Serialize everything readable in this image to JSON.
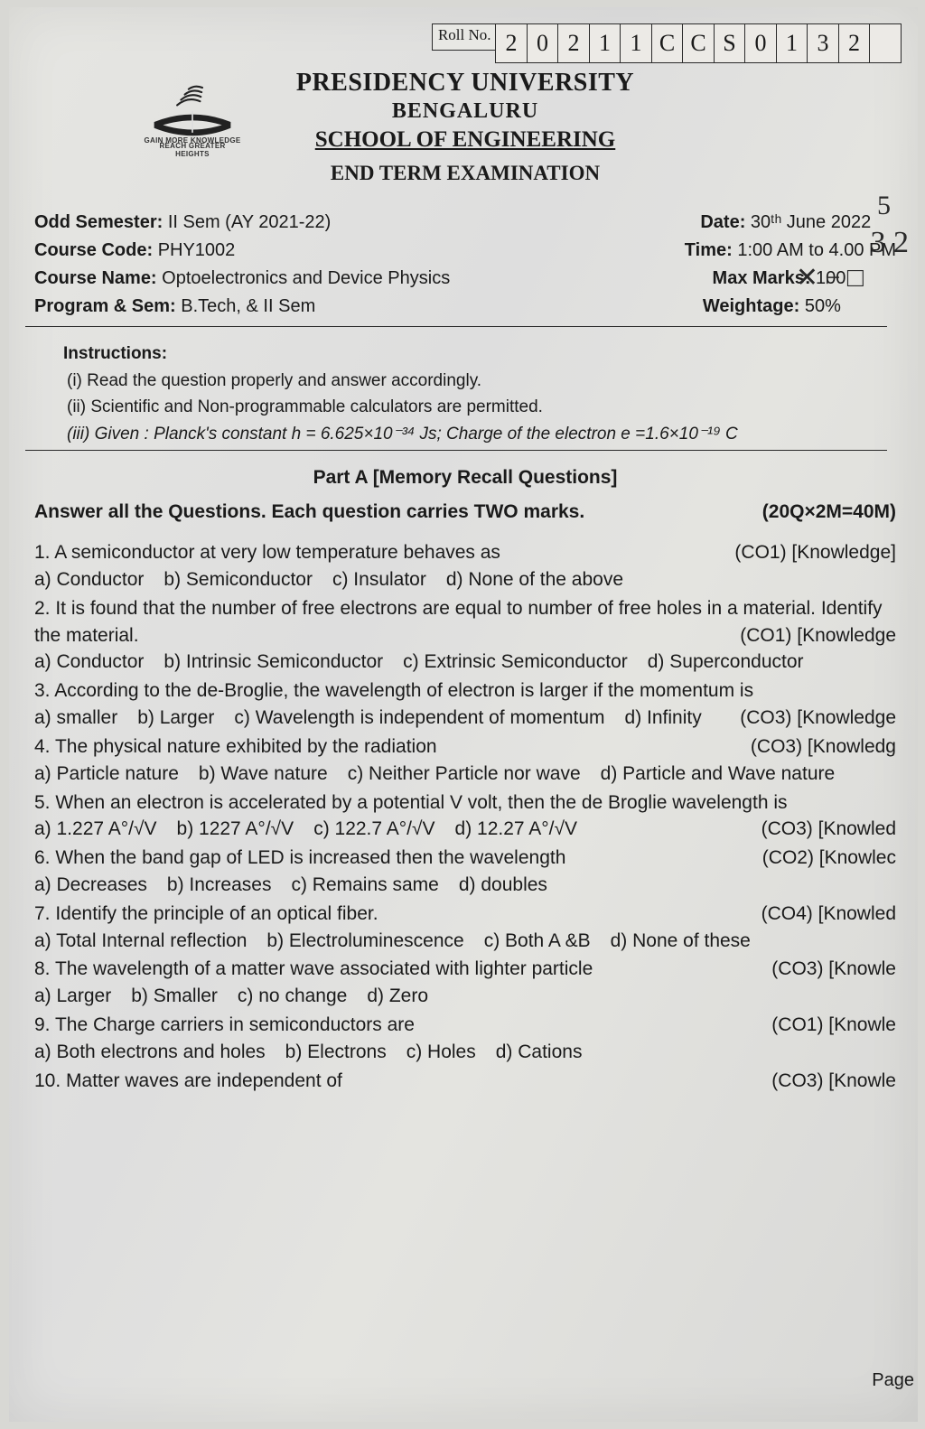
{
  "roll": {
    "label": "Roll No.",
    "cells": [
      "2",
      "0",
      "2",
      "1",
      "1",
      "C",
      "C",
      "S",
      "0",
      "1",
      "3",
      "2",
      ""
    ]
  },
  "header": {
    "university": "PRESIDENCY UNIVERSITY",
    "city": "BENGALURU",
    "school": "SCHOOL OF ENGINEERING",
    "exam": "END TERM EXAMINATION",
    "logo_tag1": "GAIN MORE KNOWLEDGE",
    "logo_tag2": "REACH GREATER HEIGHTS"
  },
  "meta": {
    "semester_label": "Odd Semester:",
    "semester_value": "II Sem (AY 2021-22)",
    "date_label": "Date:",
    "date_value": "30ᵗʰ June 2022",
    "code_label": "Course Code:",
    "code_value": "PHY1002",
    "time_label": "Time:",
    "time_value": "1:00 AM to 4.00 PM",
    "name_label": "Course Name:",
    "name_value": "Optoelectronics and Device Physics",
    "marks_label": "Max Marks:",
    "marks_value": "100",
    "prog_label": "Program & Sem:",
    "prog_value": "B.Tech, & II Sem",
    "weight_label": "Weightage:",
    "weight_value": "50%",
    "hand_date": "5",
    "hand_32": "3 2",
    "hand_xl": "✕ ⌐ □"
  },
  "instructions": {
    "title": "Instructions:",
    "i1": "(i)  Read the question properly and answer accordingly.",
    "i2": "(ii)  Scientific and Non-programmable calculators are permitted.",
    "i3": "(iii) Given : Planck's constant h = 6.625×10⁻³⁴ Js; Charge of the electron e =1.6×10⁻¹⁹ C"
  },
  "partA": {
    "title": "Part A [Memory Recall Questions]",
    "answer_all": "Answer all the Questions. Each question carries TWO marks.",
    "scheme": "(20Q×2M=40M)"
  },
  "questions": [
    {
      "n": "1.",
      "stem": "A semiconductor at very low temperature behaves as",
      "co": "(CO1) [Knowledge]",
      "opts": [
        "a) Conductor",
        "b) Semiconductor",
        "c) Insulator",
        "d) None of the above"
      ]
    },
    {
      "n": "2.",
      "stem": "It is found that the number of free electrons are equal to number of free holes in a material. Identify the material.",
      "co": "(CO1) [Knowledge",
      "opts": [
        "a) Conductor",
        "b) Intrinsic Semiconductor",
        "c) Extrinsic Semiconductor",
        "d) Superconductor"
      ]
    },
    {
      "n": "3.",
      "stem": "According to the de-Broglie, the wavelength of electron is larger if the momentum is",
      "co": "(CO3) [Knowledge",
      "opts": [
        "a) smaller",
        "b) Larger",
        "c) Wavelength is independent of momentum",
        "d) Infinity"
      ]
    },
    {
      "n": "4.",
      "stem": "The physical nature exhibited by the radiation",
      "co": "(CO3) [Knowledg",
      "opts": [
        "a) Particle nature",
        "b) Wave nature",
        "c) Neither Particle nor wave",
        "d) Particle and Wave nature"
      ]
    },
    {
      "n": "5.",
      "stem": "When an electron is accelerated by a potential V volt, then the de Broglie wavelength is",
      "co": "(CO3) [Knowled",
      "opts": [
        "a) 1.227 A°/√V",
        "b) 1227 A°/√V",
        "c) 122.7 A°/√V",
        "d) 12.27 A°/√V"
      ]
    },
    {
      "n": "6.",
      "stem": "When the band gap of LED is increased then the wavelength",
      "co": "(CO2) [Knowlec",
      "opts": [
        "a) Decreases",
        "b) Increases",
        "c) Remains same",
        "d) doubles"
      ]
    },
    {
      "n": "7.",
      "stem": "Identify the principle of an optical fiber.",
      "co": "(CO4) [Knowled",
      "opts": [
        "a) Total Internal reflection",
        "b) Electroluminescence",
        "c) Both A &B",
        "d) None of these"
      ]
    },
    {
      "n": "8.",
      "stem": "The wavelength of a matter wave associated with lighter particle",
      "co": "(CO3) [Knowle",
      "opts": [
        "a) Larger",
        "b) Smaller",
        "c) no change",
        "d) Zero"
      ]
    },
    {
      "n": "9.",
      "stem": "The Charge carriers in semiconductors are",
      "co": "(CO1) [Knowle",
      "opts": [
        "a) Both electrons and holes",
        "b) Electrons",
        "c) Holes",
        "d) Cations"
      ]
    },
    {
      "n": "10.",
      "stem": "Matter waves are independent of",
      "co": "(CO3) [Knowle",
      "opts": []
    }
  ],
  "footer": {
    "page": "Page"
  }
}
